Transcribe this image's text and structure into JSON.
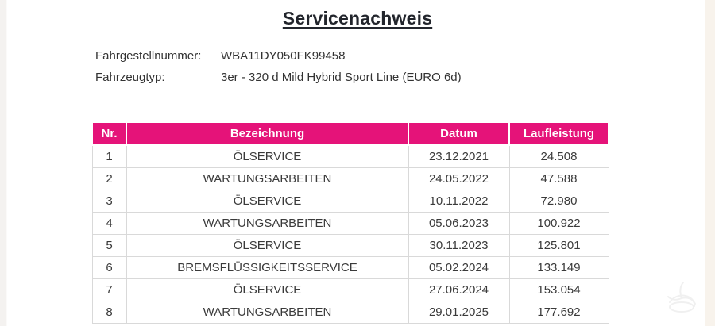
{
  "page": {
    "title": "Servicenachweis"
  },
  "vehicle": {
    "fields": [
      {
        "label": "Fahrgestellnummer:",
        "value": "WBA11DY050FK99458"
      },
      {
        "label": "Fahrzeugtyp:",
        "value": "3er - 320 d Mild Hybrid Sport Line (EURO 6d)"
      }
    ]
  },
  "table": {
    "headers": [
      "Nr.",
      "Bezeichnung",
      "Datum",
      "Laufleistung"
    ],
    "rows": [
      [
        "1",
        "ÖLSERVICE",
        "23.12.2021",
        "24.508"
      ],
      [
        "2",
        "WARTUNGSARBEITEN",
        "24.05.2022",
        "47.588"
      ],
      [
        "3",
        "ÖLSERVICE",
        "10.11.2022",
        "72.980"
      ],
      [
        "4",
        "WARTUNGSARBEITEN",
        "05.06.2023",
        "100.922"
      ],
      [
        "5",
        "ÖLSERVICE",
        "30.11.2023",
        "125.801"
      ],
      [
        "6",
        "BREMSFLÜSSIGKEITSSERVICE",
        "05.02.2024",
        "133.149"
      ],
      [
        "7",
        "ÖLSERVICE",
        "27.06.2024",
        "153.054"
      ],
      [
        "8",
        "WARTUNGSARBEITEN",
        "29.01.2025",
        "177.692"
      ]
    ]
  },
  "icons": {
    "watermark": "autoplius-logo-icon"
  },
  "colors": {
    "table_header_bg": "#e51379",
    "table_header_text": "#ffffff",
    "body_text": "#3a3a3a",
    "table_border": "#d9d9d9",
    "title_text": "#22252c"
  }
}
